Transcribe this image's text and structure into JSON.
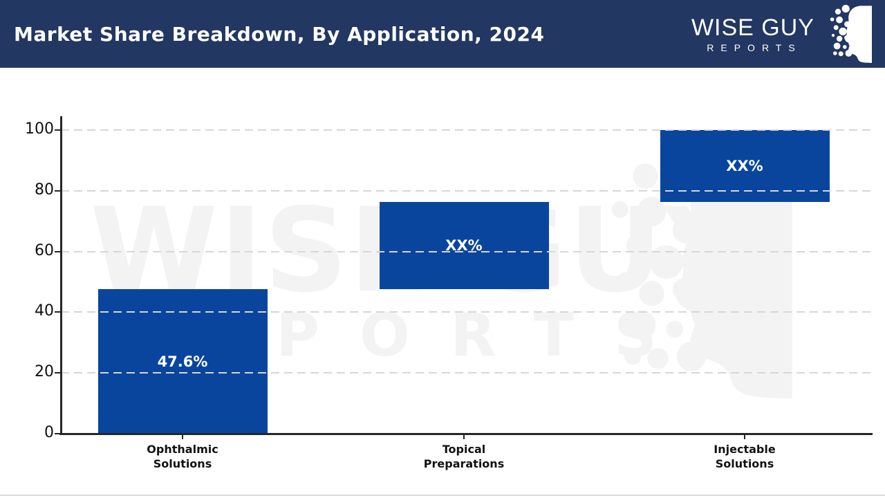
{
  "header": {
    "title": "Market Share Breakdown, By Application, 2024",
    "logo": {
      "line1": "WISE GUY",
      "line2": "REPORTS"
    }
  },
  "watermark": {
    "line1": "WISE GUY",
    "line2": "REPORTS"
  },
  "chart_data": {
    "type": "bar",
    "subtype": "floating-segment-bars",
    "title": "Market Share Breakdown, By Application, 2024",
    "categories": [
      [
        "Ophthalmic",
        "Solutions"
      ],
      [
        "Topical",
        "Preparations"
      ],
      [
        "Injectable",
        "Solutions"
      ]
    ],
    "bars": [
      {
        "category": "Ophthalmic Solutions",
        "start": 0,
        "end": 47.6,
        "label": "47.6%"
      },
      {
        "category": "Topical Preparations",
        "start": 47.6,
        "end": 76.2,
        "label": "XX%"
      },
      {
        "category": "Injectable Solutions",
        "start": 76.2,
        "end": 100,
        "label": "XX%"
      }
    ],
    "xlabel": "",
    "ylabel": "",
    "ylim": [
      0,
      100
    ],
    "yticks": [
      0,
      20,
      40,
      60,
      80,
      100
    ],
    "grid": "horizontal-dashed",
    "legend": "none",
    "bar_color": "#0a459d",
    "bar_label_color": "#ffffff"
  },
  "colors": {
    "header_bg": "#223761",
    "bar": "#0a459d",
    "grid": "#d7d7d7",
    "axis": "#262626",
    "watermark": "#f3f3f3"
  }
}
